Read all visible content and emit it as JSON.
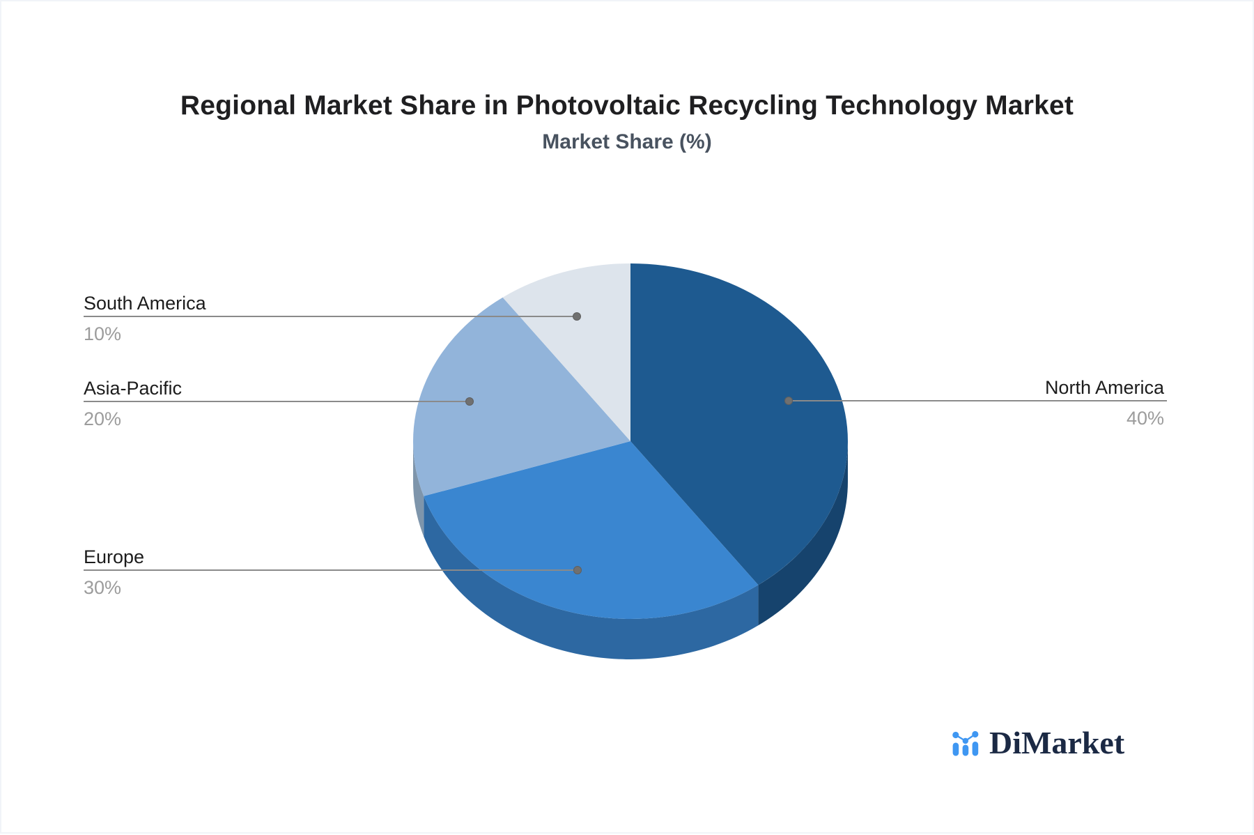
{
  "header": {
    "title": "Regional Market Share in Photovoltaic Recycling Technology Market",
    "subtitle": "Market Share (%)"
  },
  "chart_data": {
    "type": "pie",
    "style": "3d",
    "title": "Regional Market Share in Photovoltaic Recycling Technology Market",
    "subtitle": "Market Share (%)",
    "unit": "%",
    "start_angle_deg": 0,
    "direction": "clockwise",
    "legend_position": "callout-labels",
    "slices": [
      {
        "label": "North America",
        "value": 40,
        "display": "40%",
        "color": "#1e5a90",
        "side_color": "#16436d"
      },
      {
        "label": "Europe",
        "value": 30,
        "display": "30%",
        "color": "#3a86d0",
        "side_color": "#2d68a2"
      },
      {
        "label": "Asia-Pacific",
        "value": 20,
        "display": "20%",
        "color": "#92b4da",
        "side_color": "#7e95ab"
      },
      {
        "label": "South America",
        "value": 10,
        "display": "10%",
        "color": "#dde4ec",
        "side_color": "#c3cdd9"
      }
    ]
  },
  "colors": {
    "background": "#ffffff",
    "title_text": "#1f1f21",
    "subtitle_text": "#48525f",
    "label_text": "#1c1c1c",
    "value_text": "#9c9c9c",
    "leader_line": "#8a8a8a",
    "leader_dot": "#707070",
    "logo_accent": "#3f97f2",
    "logo_text_color": "#1b2944"
  },
  "branding": {
    "logo_text": "DiMarket"
  }
}
